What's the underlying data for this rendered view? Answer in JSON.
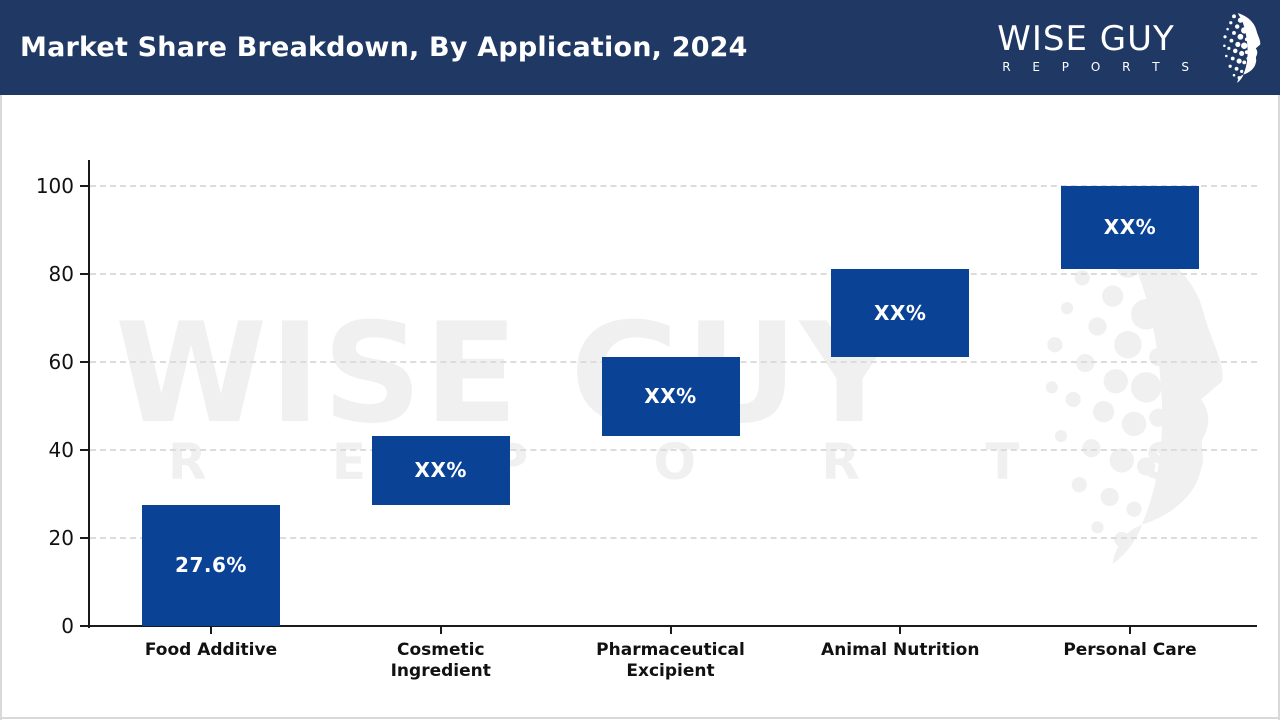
{
  "header": {
    "title": "Market Share Breakdown, By Application, 2024",
    "bg_color": "#1f3864",
    "logo": {
      "line1": "WISE GUY",
      "line2": "R E P O R T S",
      "face_icon": "dotted-head-profile-icon",
      "color": "#ffffff"
    }
  },
  "watermark": {
    "line1": "WISE GUY",
    "line2": "R E P O R T S",
    "color": "#f0f0f0"
  },
  "chart_data": {
    "type": "bar",
    "subtype": "waterfall",
    "title": "Market Share Breakdown, By Application, 2024",
    "categories": [
      "Food Additive",
      "Cosmetic\nIngredient",
      "Pharmaceutical\nExcipient",
      "Animal Nutrition",
      "Personal Care"
    ],
    "bars": [
      {
        "category": "Food Additive",
        "start": 0,
        "end": 27.6,
        "label": "27.6%"
      },
      {
        "category": "Cosmetic\nIngredient",
        "start": 27.6,
        "end": 43.2,
        "label": "XX%"
      },
      {
        "category": "Pharmaceutical\nExcipient",
        "start": 43.2,
        "end": 61.2,
        "label": "XX%"
      },
      {
        "category": "Animal Nutrition",
        "start": 61.2,
        "end": 81.2,
        "label": "XX%"
      },
      {
        "category": "Personal Care",
        "start": 81.2,
        "end": 100,
        "label": "XX%"
      }
    ],
    "yticks": [
      0,
      20,
      40,
      60,
      80,
      100
    ],
    "ylim": [
      0,
      107
    ],
    "xlabel": "",
    "ylabel": "",
    "grid": "horizontal-dashed",
    "legend": "none",
    "bar_color": "#0a4296",
    "bar_label_color": "#ffffff",
    "grid_color": "#dcdcdc",
    "axis_color": "#1a1a1a"
  }
}
